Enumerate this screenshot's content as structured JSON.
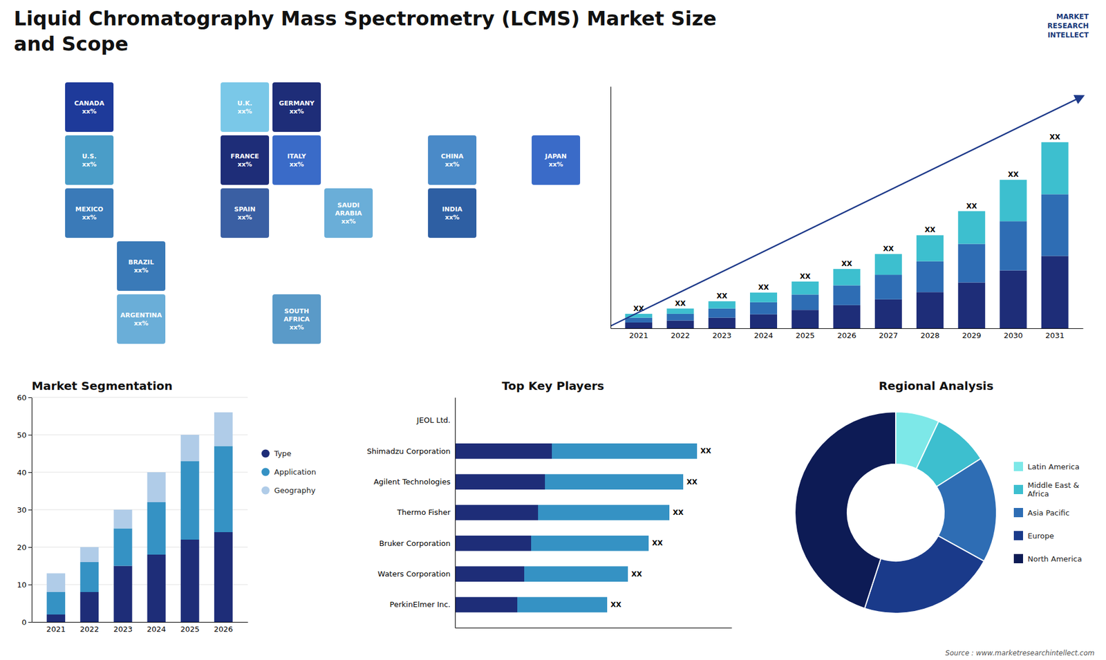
{
  "chart_data": [
    {
      "type": "map",
      "title": "Liquid Chromatography Mass Spectrometry (LCMS) Market Size\nand Scope",
      "categories": [
        "CANADA\nxx%",
        "U.S.\nxx%",
        "MEXICO\nxx%",
        "BRAZIL\nxx%",
        "ARGENTINA\nxx%",
        "U.K.\nxx%",
        "FRANCE\nxx%",
        "SPAIN\nxx%",
        "GERMANY\nxx%",
        "ITALY\nxx%",
        "SAUDI\nARABIA\nxx%",
        "SOUTH\nAFRICA\nxx%",
        "CHINA\nxx%",
        "JAPAN\nxx%",
        "INDIA\nxx%"
      ],
      "colors": [
        "#1e3a9a",
        "#4a9dc8",
        "#3a7ab8",
        "#3a7ab8",
        "#6aaed8",
        "#7ac8e8",
        "#1e2d78",
        "#3a5fa3",
        "#1e2d78",
        "#3a6bc8",
        "#6aaed8",
        "#5a9ac8",
        "#4a8ac8",
        "#3a6bc8",
        "#2e5fa3"
      ],
      "annotations": [
        "MARKET\nRESEARCH\nINTELLECT",
        "Source : www.marketresearchintellect.com"
      ]
    },
    {
      "type": "bar",
      "stacked": true,
      "categories": [
        "2021",
        "2022",
        "2023",
        "2024",
        "2025",
        "2026",
        "2027",
        "2028",
        "2029",
        "2030",
        "2031"
      ],
      "series": [
        {
          "color": "#1e2d78",
          "values": [
            1.2,
            1.6,
            2.2,
            2.9,
            3.8,
            4.8,
            6.0,
            7.5,
            9.5,
            12.0,
            15.0
          ]
        },
        {
          "color": "#2e6db4",
          "values": [
            1.0,
            1.4,
            1.9,
            2.5,
            3.2,
            4.1,
            5.1,
            6.4,
            8.0,
            10.2,
            12.8
          ]
        },
        {
          "color": "#3dbfcf",
          "values": [
            0.8,
            1.1,
            1.5,
            2.0,
            2.7,
            3.4,
            4.3,
            5.4,
            6.8,
            8.6,
            10.8
          ],
          "value_labels": [
            "XX",
            "XX",
            "XX",
            "XX",
            "XX",
            "XX",
            "XX",
            "XX",
            "XX",
            "XX",
            "XX"
          ]
        }
      ],
      "ylim": [
        0,
        50.18
      ],
      "tick_labels": "x",
      "grid": false
    },
    {
      "type": "bar",
      "stacked": true,
      "title": "Market Segmentation",
      "categories": [
        "2021",
        "2022",
        "2023",
        "2024",
        "2025",
        "2026"
      ],
      "series": [
        {
          "name": "Type",
          "color": "#1e2d78",
          "values": [
            2,
            8,
            15,
            18,
            22,
            24
          ]
        },
        {
          "name": "Application",
          "color": "#3592c4",
          "values": [
            6,
            8,
            10,
            14,
            21,
            23
          ]
        },
        {
          "name": "Geography",
          "color": "#b0cce8",
          "values": [
            5,
            4,
            5,
            8,
            7,
            9
          ]
        }
      ],
      "ylim": [
        0,
        60
      ],
      "yticks": [
        0,
        10,
        20,
        30,
        40,
        50,
        60
      ],
      "grid": true,
      "legend": "right"
    },
    {
      "type": "bar",
      "orientation": "horizontal",
      "stacked": true,
      "title": "Top Key Players",
      "categories": [
        "JEOL Ltd.",
        "Shimadzu Corporation",
        "Agilent Technologies",
        "Thermo Fisher",
        "Bruker Corporation",
        "Waters Corporation",
        "PerkinElmer Inc."
      ],
      "series": [
        {
          "color": "#1e2d78",
          "values": [
            0,
            28,
            26,
            24,
            22,
            20,
            18
          ]
        },
        {
          "color": "#3592c4",
          "values": [
            0,
            42,
            40,
            38,
            34,
            30,
            26
          ],
          "value_labels": [
            null,
            "XX",
            "XX",
            "XX",
            "XX",
            "XX",
            "XX"
          ]
        }
      ],
      "xlim": [
        0,
        80
      ],
      "tick_labels": "y",
      "grid": false
    },
    {
      "type": "donut",
      "title": "Regional Analysis",
      "categories": [
        "Latin America",
        "Middle East &\nAfrica",
        "Asia Pacific",
        "Europe",
        "North America"
      ],
      "values": [
        7,
        9,
        17,
        22,
        45
      ],
      "colors": [
        "#7de8e8",
        "#3dbfcf",
        "#2e6db4",
        "#1a3a8a",
        "#0d1b55"
      ],
      "legend": "right"
    }
  ]
}
